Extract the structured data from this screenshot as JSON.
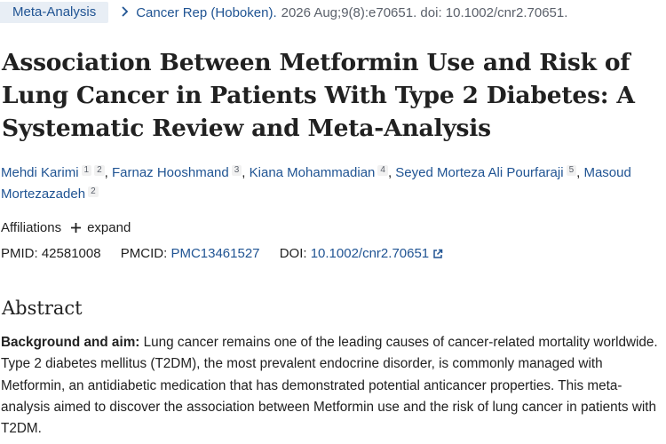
{
  "header": {
    "publication_type": "Meta-Analysis",
    "journal": "Cancer Rep (Hoboken).",
    "citation": "2026 Aug;9(8):e70651. doi: 10.1002/cnr2.70651."
  },
  "article": {
    "title": "Association Between Metformin Use and Risk of Lung Cancer in Patients With Type 2 Diabetes: A Systematic Review and Meta-Analysis"
  },
  "authors": [
    {
      "name": "Mehdi Karimi",
      "affiliations": [
        "1",
        "2"
      ]
    },
    {
      "name": "Farnaz Hooshmand",
      "affiliations": [
        "3"
      ]
    },
    {
      "name": "Kiana Mohammadian",
      "affiliations": [
        "4"
      ]
    },
    {
      "name": "Seyed Morteza Ali Pourfaraji",
      "affiliations": [
        "5"
      ]
    },
    {
      "name": "Masoud Mortezazadeh",
      "affiliations": [
        "2"
      ]
    }
  ],
  "affiliations": {
    "label": "Affiliations",
    "expand_label": "expand"
  },
  "identifiers": {
    "pmid_label": "PMID:",
    "pmid": "42581008",
    "pmcid_label": "PMCID:",
    "pmcid": "PMC13461527",
    "doi_label": "DOI:",
    "doi": "10.1002/cnr2.70651"
  },
  "abstract": {
    "heading": "Abstract",
    "sections": [
      {
        "label": "Background and aim:",
        "text": "Lung cancer remains one of the leading causes of cancer-related mortality worldwide. Type 2 diabetes mellitus (T2DM), the most prevalent endocrine disorder, is commonly managed with Metformin, an antidiabetic medication that has demonstrated potential anticancer properties. This meta-analysis aimed to discover the association between Metformin use and the risk of lung cancer in patients with T2DM."
      }
    ]
  },
  "colors": {
    "link": "#205493",
    "badge_bg": "#e8eef5",
    "muted": "#5b616b"
  },
  "icons": {
    "breadcrumb_chevron": "chevron-right-icon",
    "expand": "plus-icon",
    "external_link": "external-link-icon"
  }
}
